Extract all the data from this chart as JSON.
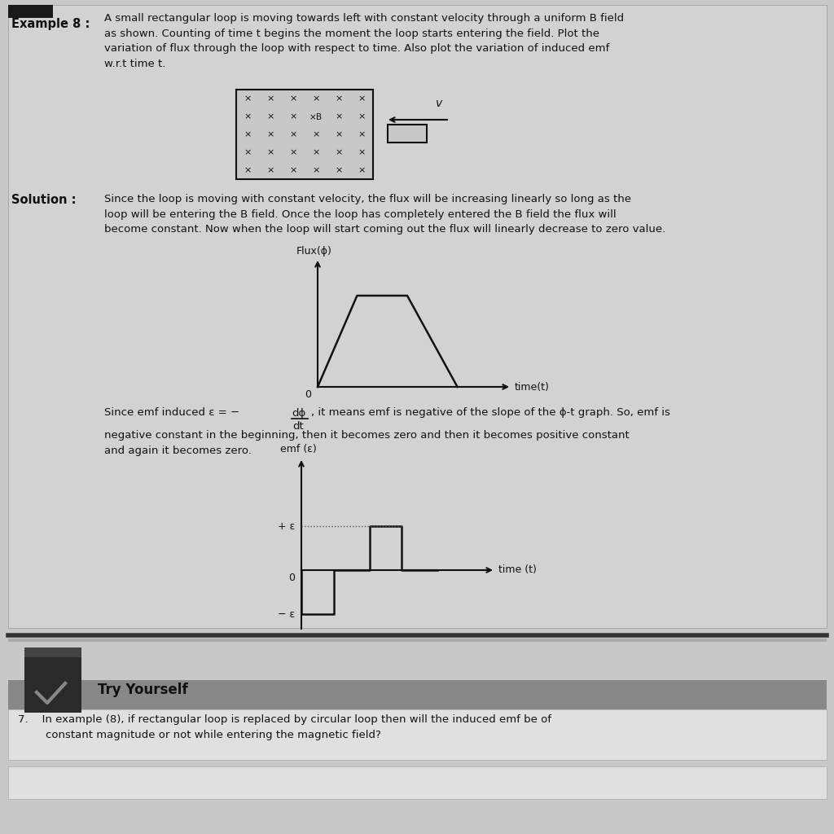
{
  "bg_color": "#c8c8c8",
  "page_bg": "#c8c8c8",
  "text_color": "#111111",
  "title_ex": "Example 8 :",
  "title_body": "A small rectangular loop is moving towards left with constant velocity through a uniform B field\nas shown. Counting of time t begins the moment the loop starts entering the field. Plot the\nvariation of flux through the loop with respect to time. Also plot the variation of induced emf\nw.r.t time t.",
  "solution_label": "Solution :",
  "solution_text": "Since the loop is moving with constant velocity, the flux will be increasing linearly so long as the\nloop will be entering the B field. Once the loop has completely entered the B field the flux will\nbecome constant. Now when the loop will start coming out the flux will linearly decrease to zero value.",
  "emf_line1_pre": "Since emf induced ε = −",
  "emf_line1_post": ", it means emf is negative of the slope of the ϕ-t graph. So, emf is",
  "emf_line2": "negative constant in the beginning, then it becomes zero and then it becomes positive constant\nand again it becomes zero.",
  "flux_ylabel": "Flux(ϕ)",
  "flux_xlabel": "time(t)",
  "emf_ylabel": "emf (ε)",
  "emf_xlabel": "time (t)",
  "try_yourself": "Try Yourself",
  "q7": "7.    In example (8), if rectangular loop is replaced by circular loop then will the induced emf be of\n        constant magnitude or not while entering the magnetic field?"
}
